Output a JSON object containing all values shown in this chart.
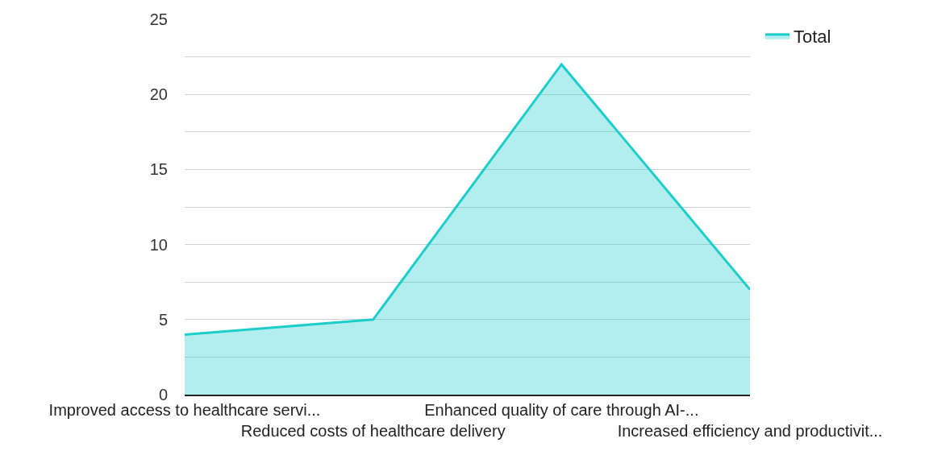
{
  "chart_data": {
    "type": "area",
    "categories": [
      "Improved access to healthcare servi...",
      "Reduced costs of healthcare delivery",
      "Enhanced quality of care through AI-...",
      "Increased efficiency and productivit..."
    ],
    "series": [
      {
        "name": "Total",
        "color": "#1ccdca",
        "values": [
          4,
          5,
          22,
          7
        ]
      }
    ],
    "ylim": [
      0,
      25
    ],
    "yticks": [
      0,
      {
        "value": 2.5,
        "label": null
      },
      5,
      {
        "value": 7.5,
        "label": null
      },
      10,
      {
        "value": 12.5,
        "label": null
      },
      15,
      {
        "value": 17.5,
        "label": null
      },
      20,
      {
        "value": 22.5,
        "label": null
      },
      25
    ],
    "grid": "y",
    "legend": "top right",
    "marker": "none",
    "line_style": "solid"
  }
}
